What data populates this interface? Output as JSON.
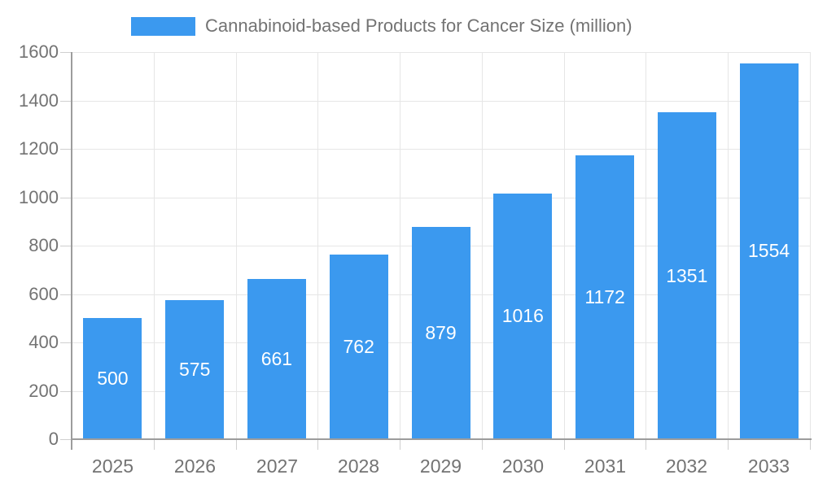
{
  "chart_data": {
    "type": "bar",
    "title": "Cannabinoid-based Products for Cancer Size (million)",
    "legend": [
      "Cannabinoid-based Products for Cancer Size (million)"
    ],
    "legend_position": "top",
    "categories": [
      "2025",
      "2026",
      "2027",
      "2028",
      "2029",
      "2030",
      "2031",
      "2032",
      "2033"
    ],
    "values": [
      500,
      575,
      661,
      762,
      879,
      1016,
      1172,
      1351,
      1554
    ],
    "value_labels_shown": true,
    "xlabel": "",
    "ylabel": "",
    "ylim": [
      0,
      1600
    ],
    "yticks": [
      0,
      200,
      400,
      600,
      800,
      1000,
      1200,
      1400,
      1600
    ],
    "grid": true,
    "colors": {
      "bar": "#3B99EF",
      "value_label": "#FFFFFF",
      "axis_text": "#737373",
      "gridline": "#E6E6E6",
      "tick": "#CFCFCF",
      "axis_line": "#9C9C9C",
      "background": "#FFFFFF"
    }
  }
}
